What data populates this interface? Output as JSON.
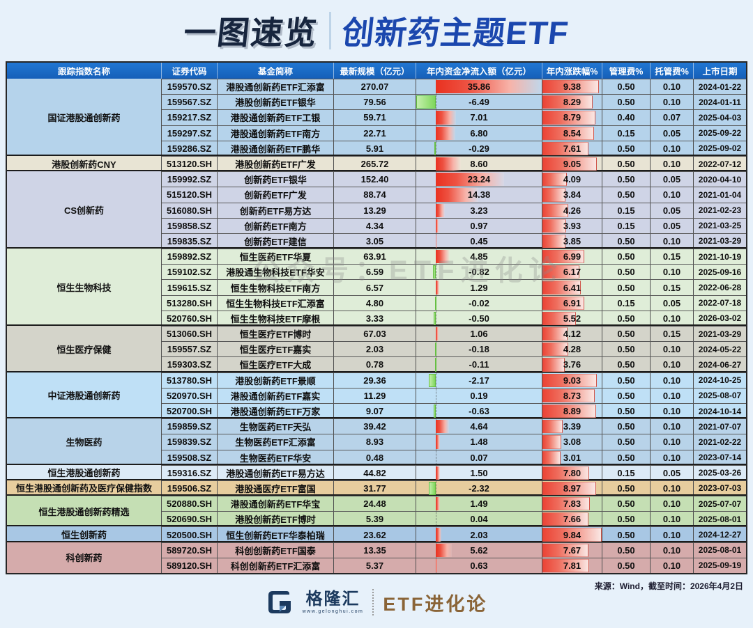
{
  "title": {
    "part1": "一图速览",
    "part2": "创新药主题ETF"
  },
  "watermark": "公众号：ETF进化论",
  "chart_data": {
    "type": "table",
    "columns": [
      "跟踪指数名称",
      "证券代码",
      "基金简称",
      "最新规模（亿元）",
      "年内资金净流入额（亿元）",
      "年内涨跌幅%",
      "管理费%",
      "托管费%",
      "上市日期"
    ],
    "bar_axis": {
      "inflow_max": 35.86,
      "inflow_min": -6.49,
      "change_max": 9.84
    },
    "groups": [
      {
        "index": "国证港股通创新药",
        "bg": "#b5d3eb",
        "rows": [
          [
            "159570.SZ",
            "港股通创新药ETF汇添富",
            "270.07",
            "35.86",
            "9.38",
            "0.50",
            "0.10",
            "2024-01-22"
          ],
          [
            "159567.SZ",
            "港股创新药ETF银华",
            "79.56",
            "-6.49",
            "8.29",
            "0.50",
            "0.10",
            "2024-01-11"
          ],
          [
            "159217.SZ",
            "港股通创新药ETF工银",
            "59.71",
            "7.01",
            "8.79",
            "0.40",
            "0.07",
            "2025-04-03"
          ],
          [
            "159297.SZ",
            "港股通创新药ETF南方",
            "22.71",
            "6.80",
            "8.54",
            "0.15",
            "0.05",
            "2025-09-22"
          ],
          [
            "159286.SZ",
            "港股通创新药ETF鹏华",
            "5.91",
            "-0.29",
            "7.61",
            "0.50",
            "0.10",
            "2025-09-02"
          ]
        ]
      },
      {
        "index": "港股创新药CNY",
        "bg": "#e8e4d4",
        "rows": [
          [
            "513120.SH",
            "港股创新药ETF广发",
            "265.72",
            "8.60",
            "9.05",
            "0.50",
            "0.10",
            "2022-07-12"
          ]
        ]
      },
      {
        "index": "CS创新药",
        "bg": "#cfd4e6",
        "rows": [
          [
            "159992.SZ",
            "创新药ETF银华",
            "152.40",
            "23.24",
            "4.09",
            "0.50",
            "0.05",
            "2020-04-10"
          ],
          [
            "515120.SH",
            "创新药ETF广发",
            "88.74",
            "14.38",
            "3.84",
            "0.50",
            "0.10",
            "2021-01-04"
          ],
          [
            "516080.SH",
            "创新药ETF易方达",
            "13.29",
            "3.23",
            "4.26",
            "0.15",
            "0.05",
            "2021-02-23"
          ],
          [
            "159858.SZ",
            "创新药ETF南方",
            "4.34",
            "0.97",
            "3.93",
            "0.15",
            "0.05",
            "2021-03-25"
          ],
          [
            "159835.SZ",
            "创新药ETF建信",
            "3.05",
            "0.45",
            "3.85",
            "0.50",
            "0.10",
            "2021-03-29"
          ]
        ]
      },
      {
        "index": "恒生生物科技",
        "bg": "#dfedd8",
        "rows": [
          [
            "159892.SZ",
            "恒生医药ETF华夏",
            "63.91",
            "4.85",
            "6.99",
            "0.50",
            "0.15",
            "2021-10-19"
          ],
          [
            "159102.SZ",
            "港股通生物科技ETF华安",
            "6.59",
            "-0.82",
            "6.17",
            "0.50",
            "0.10",
            "2025-09-16"
          ],
          [
            "159615.SZ",
            "恒生生物科技ETF南方",
            "6.57",
            "1.29",
            "6.41",
            "0.50",
            "0.15",
            "2022-06-28"
          ],
          [
            "513280.SH",
            "恒生生物科技ETF汇添富",
            "4.80",
            "-0.02",
            "6.91",
            "0.15",
            "0.05",
            "2022-07-18"
          ],
          [
            "520760.SH",
            "恒生生物科技ETF摩根",
            "3.33",
            "-0.50",
            "5.52",
            "0.50",
            "0.10",
            "2026-03-02"
          ]
        ]
      },
      {
        "index": "恒生医疗保健",
        "bg": "#d4d4ca",
        "rows": [
          [
            "513060.SH",
            "恒生医疗ETF博时",
            "67.03",
            "1.06",
            "4.12",
            "0.50",
            "0.15",
            "2021-03-29"
          ],
          [
            "159557.SZ",
            "恒生医疗ETF嘉实",
            "2.03",
            "-0.18",
            "4.28",
            "0.50",
            "0.10",
            "2024-05-22"
          ],
          [
            "159303.SZ",
            "恒生医疗ETF大成",
            "0.78",
            "-0.11",
            "3.76",
            "0.50",
            "0.10",
            "2024-06-27"
          ]
        ]
      },
      {
        "index": "中证港股通创新药",
        "bg": "#bfe0f6",
        "rows": [
          [
            "513780.SH",
            "港股创新药ETF景顺",
            "29.36",
            "-2.17",
            "9.03",
            "0.50",
            "0.10",
            "2024-10-25"
          ],
          [
            "520970.SH",
            "港股通创新药ETF嘉实",
            "11.29",
            "0.19",
            "8.73",
            "0.50",
            "0.10",
            "2025-08-07"
          ],
          [
            "520700.SH",
            "港股通创新药ETF万家",
            "9.07",
            "-0.63",
            "8.89",
            "0.50",
            "0.10",
            "2024-10-14"
          ]
        ]
      },
      {
        "index": "生物医药",
        "bg": "#b8d3e9",
        "rows": [
          [
            "159859.SZ",
            "生物医药ETF天弘",
            "39.42",
            "4.64",
            "3.39",
            "0.50",
            "0.10",
            "2021-07-07"
          ],
          [
            "159839.SZ",
            "生物医药ETF汇添富",
            "8.93",
            "1.48",
            "3.08",
            "0.50",
            "0.10",
            "2021-02-22"
          ],
          [
            "159508.SZ",
            "生物医药ETF华安",
            "0.48",
            "0.07",
            "3.01",
            "0.50",
            "0.10",
            "2023-07-14"
          ]
        ]
      },
      {
        "index": "恒生港股通创新药",
        "bg": "#dceaf6",
        "rows": [
          [
            "159316.SZ",
            "港股通创新药ETF易方达",
            "44.82",
            "1.50",
            "7.80",
            "0.15",
            "0.05",
            "2025-03-26"
          ]
        ]
      },
      {
        "index": "恒生港股通创新药及医疗保健指数",
        "bg": "#e7cd9e",
        "rows": [
          [
            "159506.SZ",
            "港股通医疗ETF富国",
            "31.77",
            "-2.32",
            "8.97",
            "0.50",
            "0.10",
            "2023-07-03"
          ]
        ]
      },
      {
        "index": "恒生港股通创新药精选",
        "bg": "#c5dfb4",
        "rows": [
          [
            "520880.SH",
            "港股通创新药ETF华宝",
            "24.48",
            "1.49",
            "7.83",
            "0.50",
            "0.10",
            "2025-07-07"
          ],
          [
            "520690.SH",
            "港股创新药ETF博时",
            "5.39",
            "0.04",
            "7.66",
            "0.50",
            "0.10",
            "2025-08-01"
          ]
        ]
      },
      {
        "index": "恒生创新药",
        "bg": "#a8c7e4",
        "rows": [
          [
            "520500.SH",
            "恒生创新药ETF华泰柏瑞",
            "23.62",
            "2.03",
            "9.84",
            "0.50",
            "0.10",
            "2024-12-27"
          ]
        ]
      },
      {
        "index": "科创新药",
        "bg": "#d5abab",
        "rows": [
          [
            "589720.SH",
            "科创创新药ETF国泰",
            "13.35",
            "5.62",
            "7.67",
            "0.50",
            "0.10",
            "2025-08-01"
          ],
          [
            "589120.SH",
            "科创创新药ETF汇添富",
            "5.37",
            "0.63",
            "7.81",
            "0.50",
            "0.10",
            "2025-09-19"
          ]
        ]
      }
    ]
  },
  "footer": {
    "source": "来源：Wind，截至时间：2026年4月2日",
    "brand": "格隆汇",
    "brand_url": "www.gelonghui.com",
    "brand2": "ETF进化论"
  },
  "colors": {
    "page_bg": "#e7f1fa",
    "header_bg": "#1b6cc6",
    "title_left": "#17253e",
    "title_right": "#1b47ae",
    "positive_bar": "#e93120",
    "negative_bar": "#7fd75c",
    "change_bar": "#eb4234",
    "brand2_text": "#8a6437"
  }
}
